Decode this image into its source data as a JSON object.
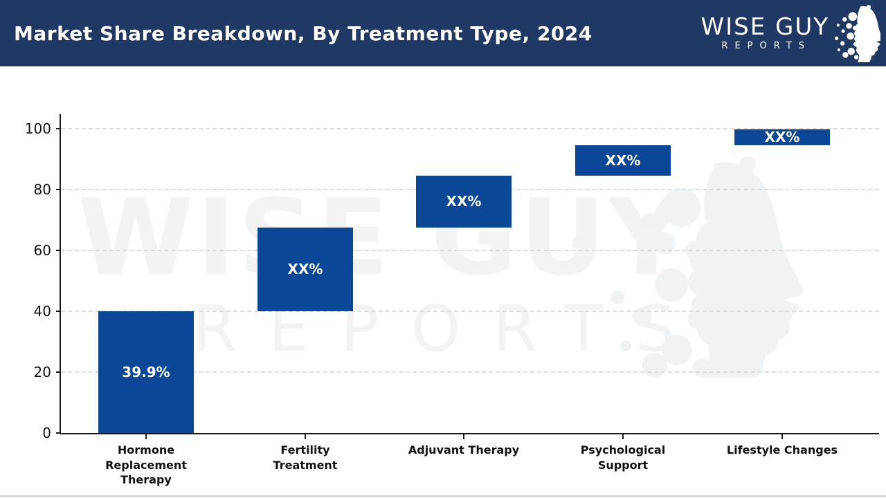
{
  "header": {
    "title": "Market Share Breakdown, By Treatment Type, 2024",
    "bg_color": "#203864",
    "logo": {
      "name": "WISE GUY",
      "sub": "REPORTS"
    }
  },
  "watermark": {
    "line1": "WISE GUY",
    "line2": "REPORTS"
  },
  "chart_data": {
    "type": "bar",
    "variant": "waterfall",
    "title": "Market Share Breakdown, By Treatment Type, 2024",
    "categories": [
      "Hormone Replacement Therapy",
      "Fertility Treatment",
      "Adjuvant Therapy",
      "Psychological Support",
      "Lifestyle Changes"
    ],
    "category_label_lines": [
      [
        "Hormone",
        "Replacement",
        "Therapy"
      ],
      [
        "Fertility",
        "Treatment"
      ],
      [
        "Adjuvant Therapy"
      ],
      [
        "Psychological",
        "Support"
      ],
      [
        "Lifestyle Changes"
      ]
    ],
    "values": [
      39.9,
      27.7,
      16.9,
      10.1,
      5.2
    ],
    "cumulative_start": [
      0,
      39.9,
      67.6,
      84.5,
      94.6
    ],
    "cumulative_end": [
      39.9,
      67.6,
      84.5,
      94.6,
      99.8
    ],
    "bar_labels": [
      "39.9%",
      "XX%",
      "XX%",
      "XX%",
      "XX%"
    ],
    "xlabel": "",
    "ylabel": "",
    "yticks": [
      0,
      20,
      40,
      60,
      80,
      100
    ],
    "ylim": [
      0,
      105
    ],
    "grid": "horizontal-dashed",
    "gridline_color": "#dcdcdc",
    "bar_color": "#0a4796",
    "bar_label_color": "#ffffff",
    "legend": "none"
  }
}
